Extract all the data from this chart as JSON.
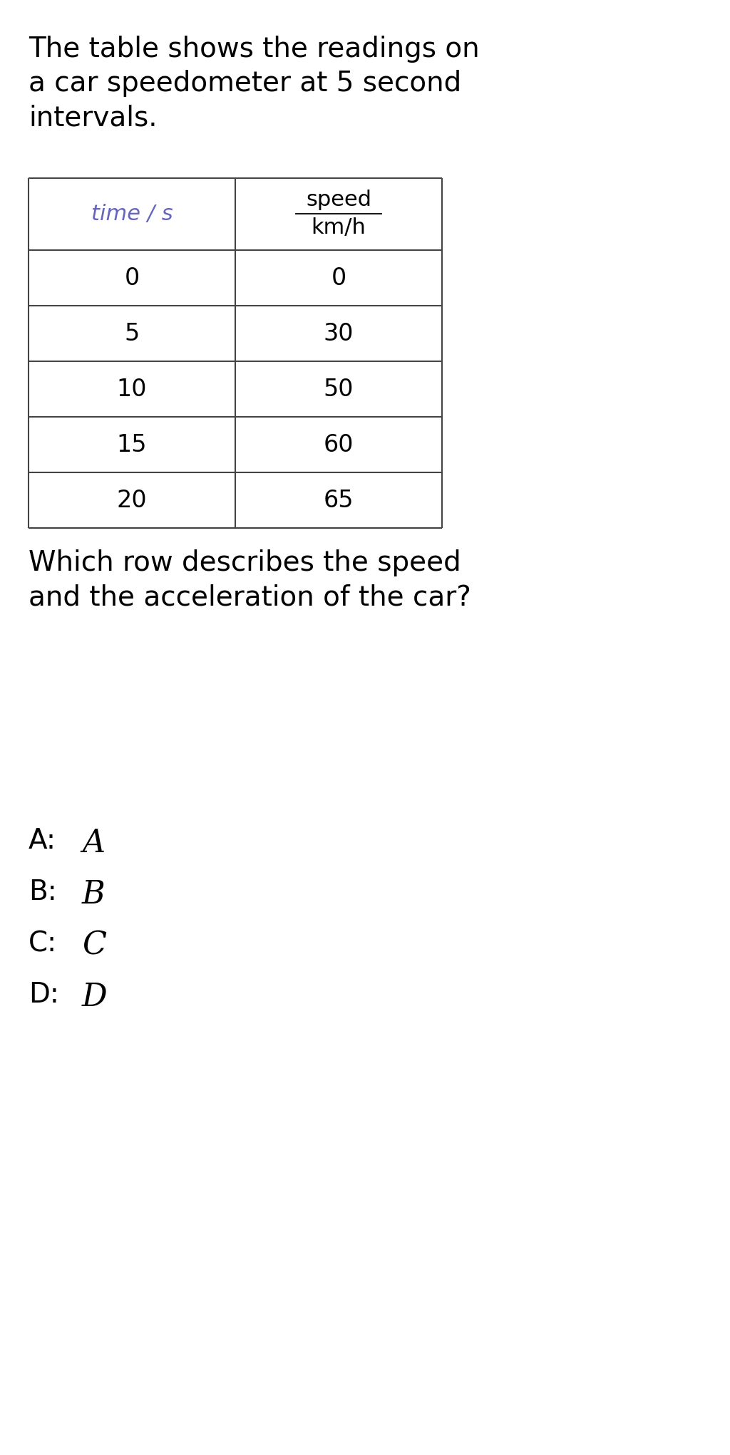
{
  "title_text": "The table shows the readings on\na car speedometer at 5 second\nintervals.",
  "question_text": "Which row describes the speed\nand the acceleration of the car?",
  "col_header_1": "time / s",
  "col_header_speed": "speed",
  "col_header_kmh": "km/h",
  "time_values": [
    "0",
    "5",
    "10",
    "15",
    "20"
  ],
  "speed_values": [
    "0",
    "30",
    "50",
    "60",
    "65"
  ],
  "options": [
    [
      "A:",
      "A"
    ],
    [
      "B:",
      "B"
    ],
    [
      "C:",
      "C"
    ],
    [
      "D:",
      "D"
    ]
  ],
  "bg_color": "#ffffff",
  "text_color": "#000000",
  "header_text_color": "#6666bb",
  "table_border_color": "#444444",
  "title_fontsize": 28,
  "question_fontsize": 28,
  "table_data_fontsize": 24,
  "table_header_fontsize": 22,
  "option_label_fontsize": 28,
  "option_letter_fontsize": 32
}
